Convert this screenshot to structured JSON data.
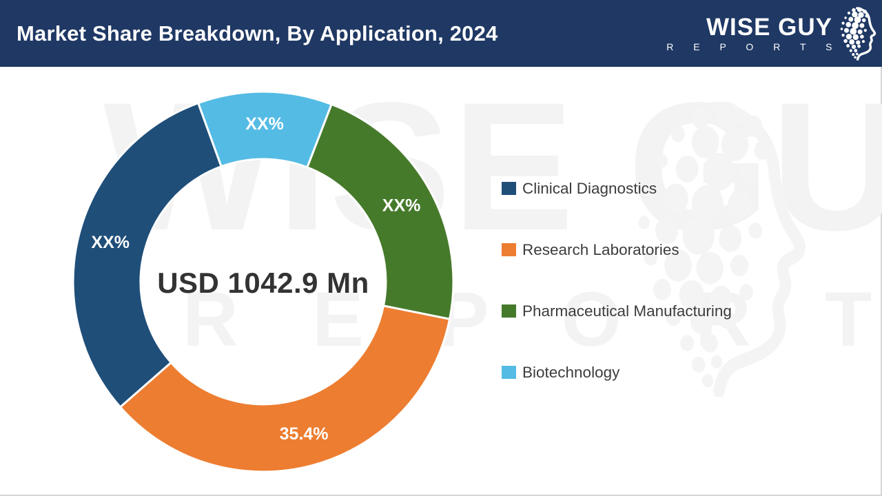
{
  "header": {
    "title": "Market Share Breakdown, By Application, 2024",
    "background_color": "#1f3864",
    "logo": {
      "line1": "WISE GUY",
      "line2": "R E P O R T S",
      "icon": "dotted-head-profile-icon"
    }
  },
  "watermark": {
    "line1": "WISE GUY",
    "line2": "R E P O R T S",
    "icon": "dotted-head-profile-icon"
  },
  "chart_data": {
    "type": "donut",
    "title": "Market Share Breakdown, By Application, 2024",
    "center_label": "USD 1042.9 Mn",
    "start_angle_deg": -20,
    "direction": "clockwise",
    "legend_position": "right",
    "segments": [
      {
        "name": "Biotechnology",
        "value_pct": 11.4,
        "label": "XX%",
        "color": "#54bbe4"
      },
      {
        "name": "Pharmaceutical Manufacturing",
        "value_pct": 22.3,
        "label": "XX%",
        "color": "#467a2b"
      },
      {
        "name": "Research Laboratories",
        "value_pct": 35.4,
        "label": "35.4%",
        "color": "#ed7d31"
      },
      {
        "name": "Clinical Diagnostics",
        "value_pct": 30.9,
        "label": "XX%",
        "color": "#1f4e79"
      }
    ]
  },
  "legend": {
    "items": [
      {
        "label": "Clinical Diagnostics",
        "color": "#1f4e79"
      },
      {
        "label": "Research Laboratories",
        "color": "#ed7d31"
      },
      {
        "label": "Pharmaceutical Manufacturing",
        "color": "#467a2b"
      },
      {
        "label": "Biotechnology",
        "color": "#54bbe4"
      }
    ]
  }
}
